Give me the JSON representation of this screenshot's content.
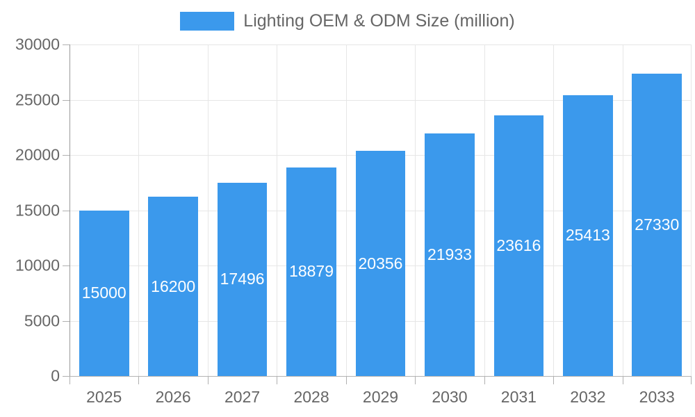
{
  "legend": {
    "label": "Lighting OEM & ODM Size (million)"
  },
  "chart_data": {
    "type": "bar",
    "title": "Lighting OEM & ODM Size (million)",
    "series_name": "Lighting OEM & ODM Size (million)",
    "categories": [
      "2025",
      "2026",
      "2027",
      "2028",
      "2029",
      "2030",
      "2031",
      "2032",
      "2033"
    ],
    "values": [
      15000,
      16200,
      17496,
      18879,
      20356,
      21933,
      23616,
      25413,
      27330
    ],
    "xlabel": "",
    "ylabel": "",
    "ylim": [
      0,
      30000
    ],
    "yticks": [
      0,
      5000,
      10000,
      15000,
      20000,
      25000,
      30000
    ],
    "grid": true,
    "legend_position": "top"
  },
  "colors": {
    "bar": "#3B99EC",
    "grid_line": "#E6E6E6",
    "y_axis_line": "#999999",
    "x_axis_line": "#B3B3B3",
    "tick": "#B0B0B0",
    "axis_label": "#666666",
    "legend_text": "#666666",
    "value_label": "#FFFFFF",
    "background": "#FFFFFF"
  }
}
